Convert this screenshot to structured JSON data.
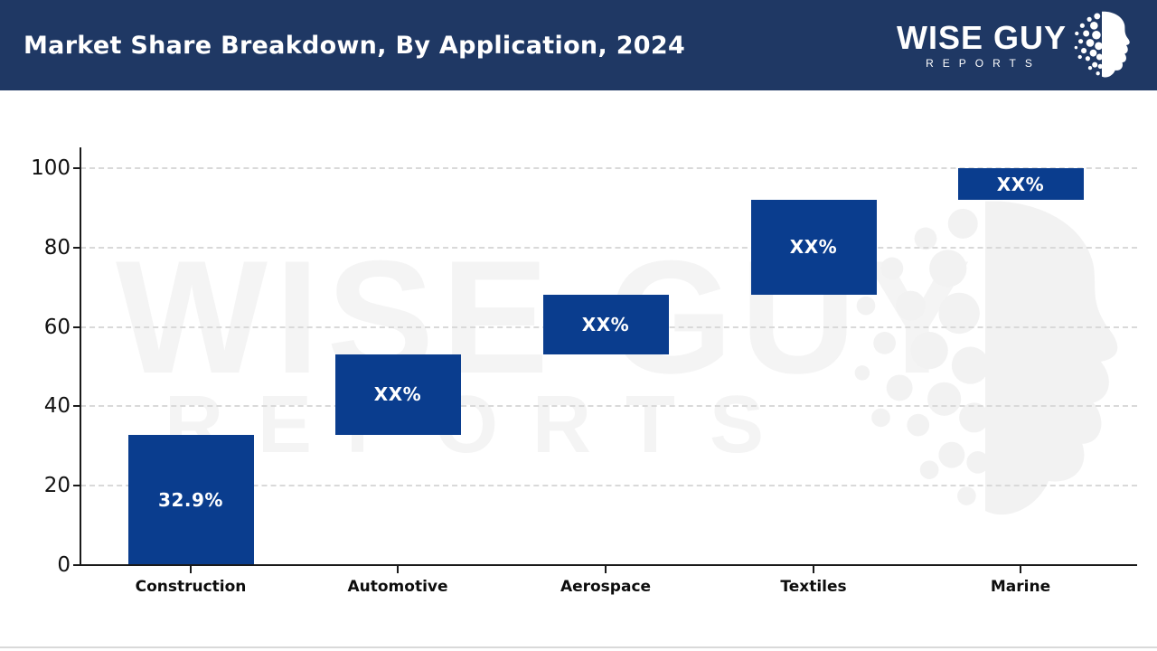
{
  "header": {
    "title": "Market Share Breakdown, By Application, 2024",
    "logo": {
      "line1": "WISE GUY",
      "line2": "REPORTS"
    }
  },
  "watermark": {
    "line1": "WISE GUY",
    "line2": "REPORTS"
  },
  "colors": {
    "header_bg": "#1f3864",
    "bar": "#0a3d8e",
    "bar_label": "#ffffff",
    "grid": "#d9d9d9",
    "axis": "#1a1a1a",
    "watermark": "#f4f4f4"
  },
  "chart_data": {
    "type": "bar",
    "subtype": "waterfall",
    "title": "Market Share Breakdown, By Application, 2024",
    "categories": [
      "Construction",
      "Automotive",
      "Aerospace",
      "Textiles",
      "Marine"
    ],
    "bars": [
      {
        "category": "Construction",
        "start": 0,
        "end": 32.9,
        "label": "32.9%"
      },
      {
        "category": "Automotive",
        "start": 32.9,
        "end": 53,
        "label": "XX%"
      },
      {
        "category": "Aerospace",
        "start": 53,
        "end": 68.2,
        "label": "XX%"
      },
      {
        "category": "Textiles",
        "start": 68.2,
        "end": 92,
        "label": "XX%"
      },
      {
        "category": "Marine",
        "start": 92,
        "end": 100,
        "label": "XX%"
      }
    ],
    "y_ticks": [
      0,
      20,
      40,
      60,
      80,
      100
    ],
    "ylim": [
      0,
      105
    ],
    "xlabel": "",
    "ylabel": "",
    "grid": "horizontal-dashed",
    "legend": "none"
  }
}
